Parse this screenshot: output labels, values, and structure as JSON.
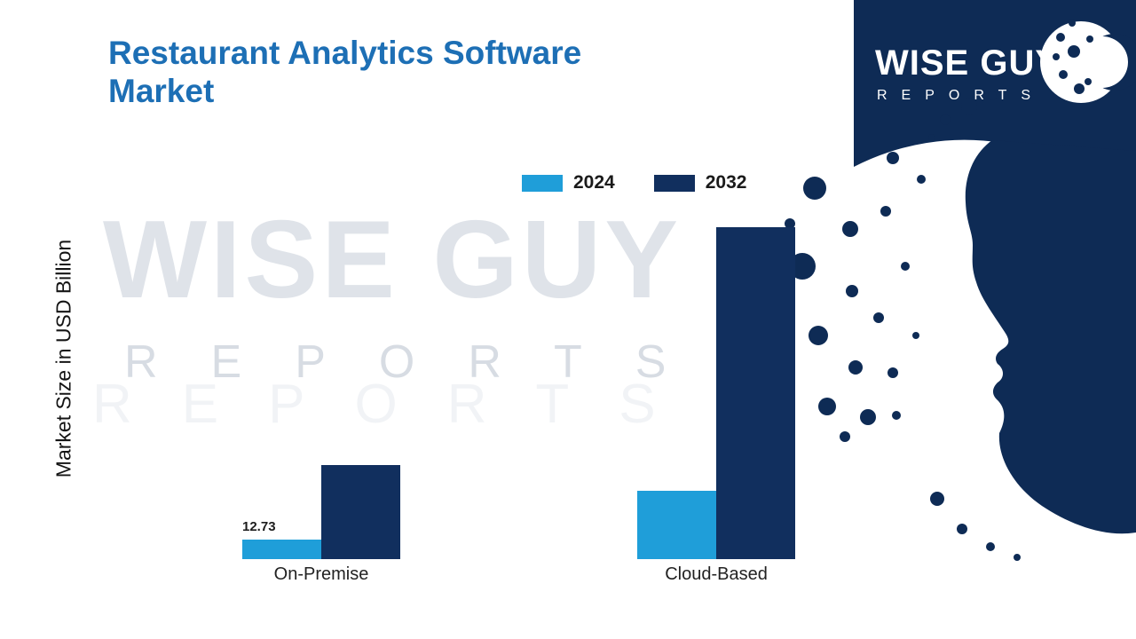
{
  "logo": {
    "line1": "WISE GUY",
    "line2": "REPORTS"
  },
  "watermark": {
    "line1": "WISE GUY",
    "line2": "REPORTS"
  },
  "chart_data": {
    "type": "bar",
    "title": "Restaurant Analytics Software Market",
    "ylabel": "Market Size in USD Billion",
    "xlabel": "",
    "categories": [
      "On-Premise",
      "Cloud-Based"
    ],
    "series": [
      {
        "name": "2024",
        "color": "#1f9ed9",
        "values": [
          12.73,
          44.5
        ]
      },
      {
        "name": "2032",
        "color": "#112f5e",
        "values": [
          61.2,
          216.4
        ]
      }
    ],
    "data_labels": [
      {
        "series": "2024",
        "category": "On-Premise",
        "text": "12.73"
      }
    ],
    "legend_position": "top-center",
    "grid": false,
    "y_axis_ticks": "none"
  },
  "colors": {
    "title_blue": "#1d6fb5",
    "bar_2024": "#1f9ed9",
    "bar_2032": "#112f5e",
    "panel_navy": "#0e2b55",
    "watermark_gray": "#dfe3e9"
  }
}
